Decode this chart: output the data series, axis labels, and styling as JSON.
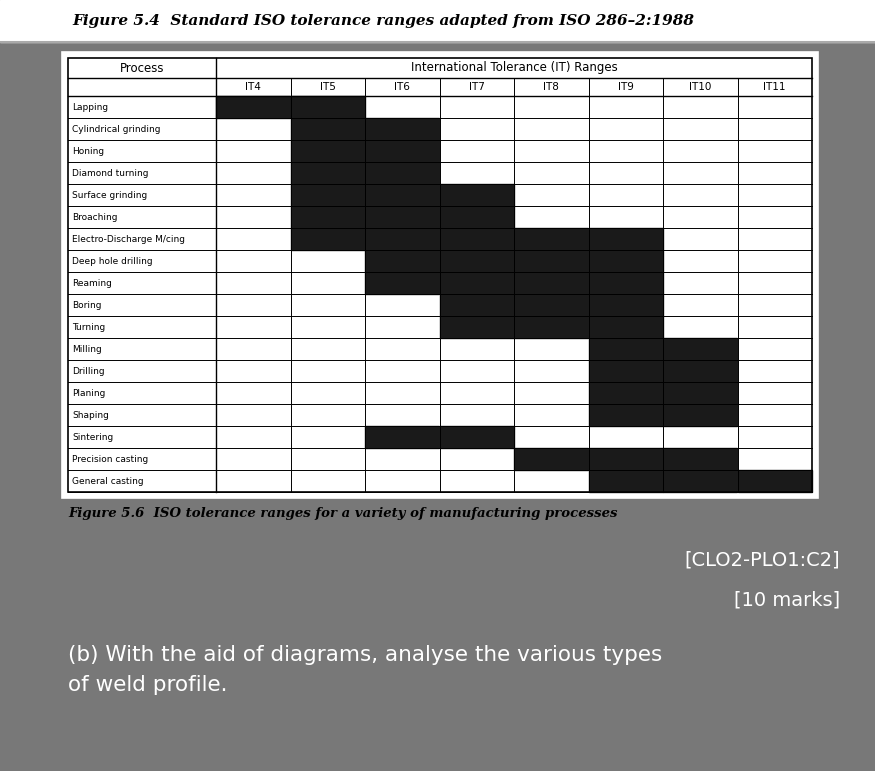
{
  "figure_title": "Figure 5.4  Standard ISO tolerance ranges adapted from ISO 286–2:1988",
  "table_title": "International Tolerance (IT) Ranges",
  "process_label": "Process",
  "col_headers": [
    "IT4",
    "IT5",
    "IT6",
    "IT7",
    "IT8",
    "IT9",
    "IT10",
    "IT11"
  ],
  "processes": [
    "Lapping",
    "Cylindrical grinding",
    "Honing",
    "Diamond turning",
    "Surface grinding",
    "Broaching",
    "Electro-Discharge M/cing",
    "Deep hole drilling",
    "Reaming",
    "Boring",
    "Turning",
    "Milling",
    "Drilling",
    "Planing",
    "Shaping",
    "Sintering",
    "Precision casting",
    "General casting"
  ],
  "filled": [
    [
      1,
      1,
      0,
      0,
      0,
      0,
      0,
      0
    ],
    [
      0,
      1,
      1,
      0,
      0,
      0,
      0,
      0
    ],
    [
      0,
      1,
      1,
      0,
      0,
      0,
      0,
      0
    ],
    [
      0,
      1,
      1,
      0,
      0,
      0,
      0,
      0
    ],
    [
      0,
      1,
      1,
      1,
      0,
      0,
      0,
      0
    ],
    [
      0,
      1,
      1,
      1,
      0,
      0,
      0,
      0
    ],
    [
      0,
      1,
      1,
      1,
      1,
      1,
      0,
      0
    ],
    [
      0,
      0,
      1,
      1,
      1,
      1,
      0,
      0
    ],
    [
      0,
      0,
      1,
      1,
      1,
      1,
      0,
      0
    ],
    [
      0,
      0,
      0,
      1,
      1,
      1,
      0,
      0
    ],
    [
      0,
      0,
      0,
      1,
      1,
      1,
      0,
      0
    ],
    [
      0,
      0,
      0,
      0,
      0,
      1,
      1,
      0
    ],
    [
      0,
      0,
      0,
      0,
      0,
      1,
      1,
      0
    ],
    [
      0,
      0,
      0,
      0,
      0,
      1,
      1,
      0
    ],
    [
      0,
      0,
      0,
      0,
      0,
      1,
      1,
      0
    ],
    [
      0,
      0,
      1,
      1,
      0,
      0,
      0,
      0
    ],
    [
      0,
      0,
      0,
      0,
      1,
      1,
      1,
      0
    ],
    [
      0,
      0,
      0,
      0,
      0,
      1,
      1,
      1
    ]
  ],
  "figure_caption": "Figure 5.6  ISO tolerance ranges for a variety of manufacturing processes",
  "bg_color": "#787878",
  "filled_color": "#1a1a1a",
  "clo_text": "[CLO2-PLO1:C2]",
  "marks_text": "[10 marks]",
  "part_b_text": "(b) With the aid of diagrams, analyse the various types\nof weld profile."
}
